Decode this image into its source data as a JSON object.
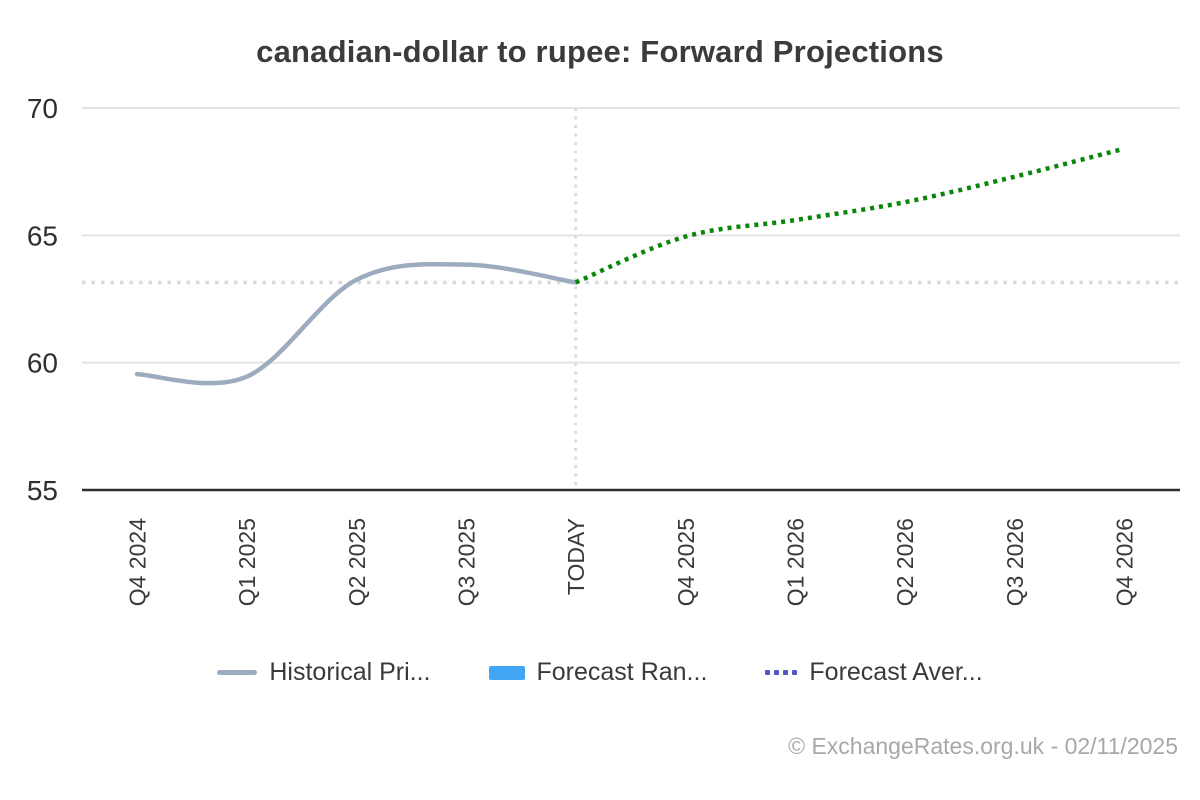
{
  "title": "canadian-dollar to rupee: Forward Projections",
  "chart_data": {
    "type": "line",
    "title": "canadian-dollar to rupee: Forward Projections",
    "categories": [
      "Q4 2024",
      "Q1 2025",
      "Q2 2025",
      "Q3 2025",
      "TODAY",
      "Q4 2025",
      "Q1 2026",
      "Q2 2026",
      "Q3 2026",
      "Q4 2026"
    ],
    "series": [
      {
        "name": "Historical Price",
        "style": "solid",
        "color": "#9dabbf",
        "x_indices": [
          0,
          1,
          2,
          3,
          4
        ],
        "values": [
          59.55,
          59.45,
          63.25,
          63.85,
          63.15
        ]
      },
      {
        "name": "Forecast Average",
        "style": "dotted",
        "color": "#0a870a",
        "x_indices": [
          4,
          5,
          6,
          7,
          8,
          9
        ],
        "values": [
          63.15,
          64.95,
          65.6,
          66.3,
          67.3,
          68.4
        ]
      }
    ],
    "reference_line": {
      "value": 63.15,
      "style": "dotted",
      "color": "#d9d9d9"
    },
    "today_marker": {
      "category": "TODAY",
      "style": "dotted",
      "color": "#dcdcdc"
    },
    "ylim": [
      55,
      70
    ],
    "yticks": [
      55,
      60,
      65,
      70
    ],
    "xlabel": "",
    "ylabel": "",
    "grid": "horizontal",
    "legend_position": "bottom"
  },
  "legend": {
    "items": [
      {
        "label": "Historical Pri...",
        "swatch": "line",
        "color": "#9dabbf"
      },
      {
        "label": "Forecast Ran...",
        "swatch": "rect",
        "color": "#41a6f6"
      },
      {
        "label": "Forecast Aver...",
        "swatch": "dotted",
        "color": "#5356cb"
      }
    ]
  },
  "footer": {
    "copyright": "© ExchangeRates.org.uk - 02/11/2025"
  },
  "colors": {
    "grid_line": "#e4e4e4",
    "axis_line": "#2d2d2d",
    "tick_label": "#3a3a3a",
    "title_text": "#3b3b3b",
    "footer_text": "#a8a8a8"
  }
}
